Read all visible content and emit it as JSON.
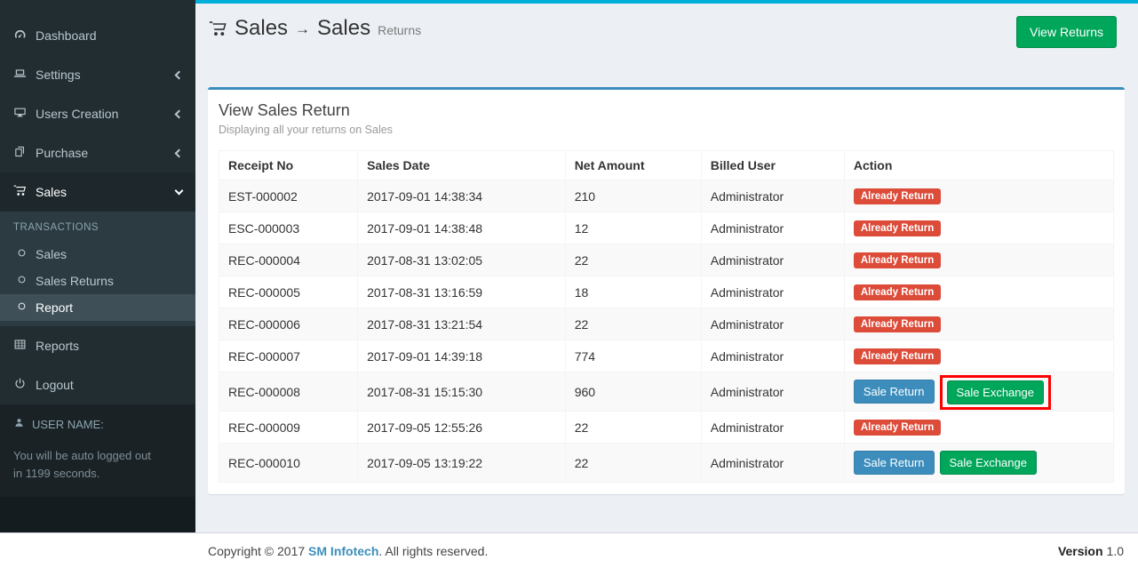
{
  "colors": {
    "top_strip": "#00aeda",
    "accent_blue": "#3c8dbc",
    "green": "#00a65a",
    "red_badge": "#dd4b39",
    "annotation_red": "#ff0000",
    "sidebar_bg": "#222d32"
  },
  "sidebar": {
    "items": [
      {
        "label": "Dashboard",
        "icon": "gauge-icon"
      },
      {
        "label": "Settings",
        "icon": "laptop-icon",
        "chevron": "left"
      },
      {
        "label": "Users Creation",
        "icon": "desktop-icon",
        "chevron": "left"
      },
      {
        "label": "Purchase",
        "icon": "files-icon",
        "chevron": "left"
      },
      {
        "label": "Sales",
        "icon": "cart-icon",
        "chevron": "down",
        "active": true
      }
    ],
    "section_label": "TRANSACTIONS",
    "submenu": [
      {
        "label": "Sales",
        "icon": "circle-icon"
      },
      {
        "label": "Sales Returns",
        "icon": "circle-icon",
        "current": true
      },
      {
        "label": "Report",
        "icon": "circle-icon",
        "hovered": true
      }
    ],
    "items_bottom": [
      {
        "label": "Reports",
        "icon": "table-icon"
      },
      {
        "label": "Logout",
        "icon": "power-icon"
      }
    ],
    "user_label": "USER NAME:",
    "auto_logout_notice": "You will be auto logged out in 1199 seconds."
  },
  "header": {
    "icon": "shopping-cart-icon",
    "section": "Sales",
    "separator": "→",
    "page": "Sales",
    "page_sub": "Returns",
    "view_returns_label": "View Returns"
  },
  "card": {
    "title": "View Sales Return",
    "subtitle": "Displaying all your returns on Sales"
  },
  "table": {
    "columns": [
      "Receipt No",
      "Sales Date",
      "Net Amount",
      "Billed User",
      "Action"
    ],
    "action_labels": {
      "already_return": "Already Return",
      "sale_return": "Sale Return",
      "sale_exchange": "Sale Exchange"
    },
    "rows": [
      {
        "receipt_no": "EST-000002",
        "sales_date": "2017-09-01 14:38:34",
        "net_amount": "210",
        "billed_user": "Administrator",
        "action": "already_return"
      },
      {
        "receipt_no": "ESC-000003",
        "sales_date": "2017-09-01 14:38:48",
        "net_amount": "12",
        "billed_user": "Administrator",
        "action": "already_return"
      },
      {
        "receipt_no": "REC-000004",
        "sales_date": "2017-08-31 13:02:05",
        "net_amount": "22",
        "billed_user": "Administrator",
        "action": "already_return"
      },
      {
        "receipt_no": "REC-000005",
        "sales_date": "2017-08-31 13:16:59",
        "net_amount": "18",
        "billed_user": "Administrator",
        "action": "already_return"
      },
      {
        "receipt_no": "REC-000006",
        "sales_date": "2017-08-31 13:21:54",
        "net_amount": "22",
        "billed_user": "Administrator",
        "action": "already_return"
      },
      {
        "receipt_no": "REC-000007",
        "sales_date": "2017-09-01 14:39:18",
        "net_amount": "774",
        "billed_user": "Administrator",
        "action": "already_return"
      },
      {
        "receipt_no": "REC-000008",
        "sales_date": "2017-08-31 15:15:30",
        "net_amount": "960",
        "billed_user": "Administrator",
        "action": "sale_return_exchange",
        "highlighted": true
      },
      {
        "receipt_no": "REC-000009",
        "sales_date": "2017-09-05 12:55:26",
        "net_amount": "22",
        "billed_user": "Administrator",
        "action": "already_return"
      },
      {
        "receipt_no": "REC-000010",
        "sales_date": "2017-09-05 13:19:22",
        "net_amount": "22",
        "billed_user": "Administrator",
        "action": "sale_return_exchange"
      }
    ]
  },
  "footer": {
    "copyright_prefix": "Copyright © 2017 ",
    "company": "SM Infotech",
    "copyright_suffix": ". All rights reserved.",
    "version_label": "Version",
    "version_value": "1.0"
  }
}
